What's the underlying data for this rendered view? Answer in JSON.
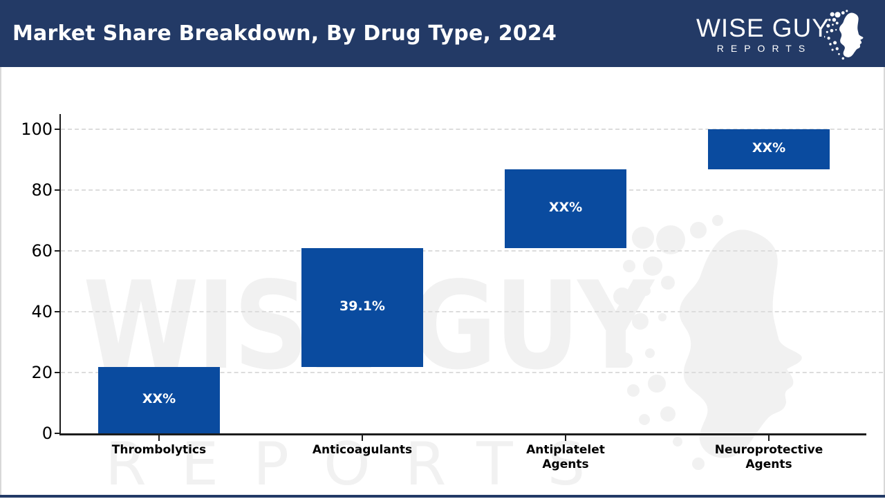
{
  "header": {
    "title": "Market Share Breakdown, By Drug Type, 2024",
    "logo": {
      "line1": "WISE GUY",
      "line2": "REPORTS"
    }
  },
  "watermark": {
    "line1": "WISE GUY",
    "line2": "REPORTS"
  },
  "colors": {
    "header_bg": "#233a66",
    "bar": "#0a4b9f",
    "grid": "#dcdcdc",
    "axis": "#1c1c1c",
    "bar_label": "#ffffff",
    "watermark": "#f1f1f1"
  },
  "chart_data": {
    "type": "bar",
    "subtype": "waterfall",
    "title": "Market Share Breakdown, By Drug Type, 2024",
    "xlabel": "",
    "ylabel": "",
    "categories": [
      "Thrombolytics",
      "Anticoagulants",
      "Antiplatelet Agents",
      "Neuroprotective Agents"
    ],
    "segments": [
      {
        "category": "Thrombolytics",
        "start": 0,
        "end": 21.8,
        "label": "XX%"
      },
      {
        "category": "Anticoagulants",
        "start": 21.8,
        "end": 60.9,
        "label": "39.1%"
      },
      {
        "category": "Antiplatelet Agents",
        "start": 60.9,
        "end": 86.8,
        "label": "XX%"
      },
      {
        "category": "Neuroprotective Agents",
        "start": 86.8,
        "end": 100,
        "label": "XX%"
      }
    ],
    "yticks": [
      0,
      20,
      40,
      60,
      80,
      100
    ],
    "ylim": [
      0,
      100
    ],
    "grid": "horizontal-dashed",
    "legend": "none"
  }
}
